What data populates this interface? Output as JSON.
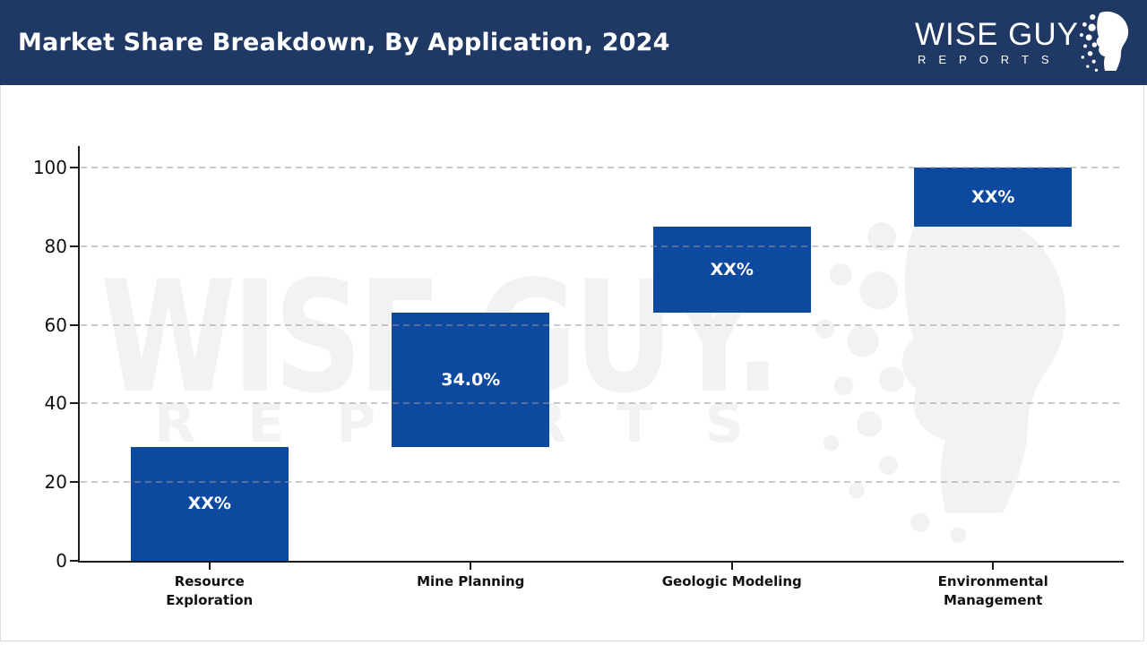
{
  "header": {
    "title": "Market Share Breakdown, By Application, 2024",
    "logo": {
      "line1": "WISE GUY",
      "line2": "REPORTS"
    }
  },
  "watermark": {
    "line1": "WISE GUY.",
    "line2": "REPORTS"
  },
  "chart_data": {
    "type": "bar",
    "subtype": "waterfall",
    "title": "Market Share Breakdown, By Application, 2024",
    "categories": [
      "Resource\nExploration",
      "Mine Planning",
      "Geologic Modeling",
      "Environmental\nManagement"
    ],
    "bars": [
      {
        "category": "Resource\nExploration",
        "start": 0,
        "end": 29,
        "label": "XX%"
      },
      {
        "category": "Mine Planning",
        "start": 29,
        "end": 63,
        "label": "34.0%"
      },
      {
        "category": "Geologic Modeling",
        "start": 63,
        "end": 85,
        "label": "XX%"
      },
      {
        "category": "Environmental\nManagement",
        "start": 85,
        "end": 100,
        "label": "XX%"
      }
    ],
    "ylim": [
      0,
      100
    ],
    "yticks": [
      0,
      20,
      40,
      60,
      80,
      100
    ],
    "xlabel": "",
    "ylabel": "",
    "grid": "horizontal-dashed",
    "legend": null,
    "colors": {
      "bar": "#0D4A9F",
      "bar_label": "#ffffff",
      "axis": "#1a1a1a",
      "gridline": "#d9d9d9",
      "header_bg": "#1F3864",
      "watermark": "#f2f2f2"
    }
  }
}
